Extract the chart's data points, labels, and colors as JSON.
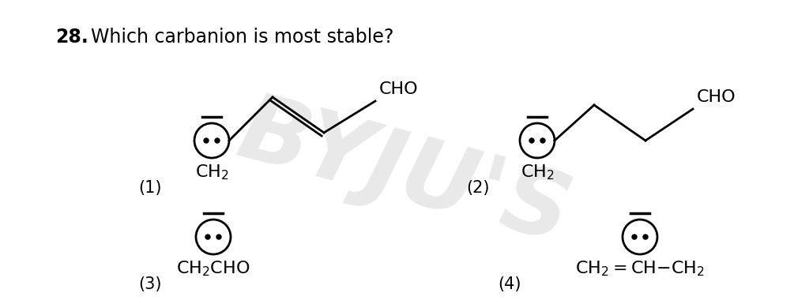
{
  "background_color": "#ffffff",
  "watermark_text": "BYJU'S",
  "watermark_color": "#c8c8c8",
  "title_number": "28.",
  "title_text": "Which carbanion is most stable?",
  "title_fontsize": 17,
  "label_fontsize": 15,
  "struct_fontsize": 16,
  "options": [
    "(1)",
    "(2)",
    "(3)",
    "(4)"
  ]
}
